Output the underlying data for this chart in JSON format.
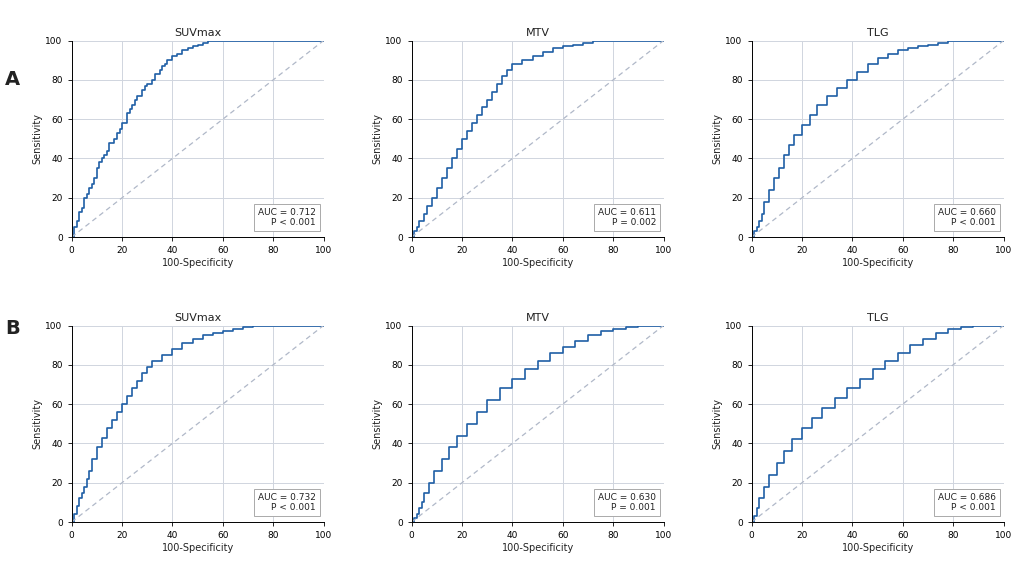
{
  "figure_bg": "#ffffff",
  "axes_bg": "#ffffff",
  "line_color": "#1f5fa6",
  "diag_color": "#b0b8c8",
  "grid_color": "#d0d5de",
  "text_color": "#222222",
  "titles": [
    "SUVmax",
    "MTV",
    "TLG",
    "SUVmax",
    "MTV",
    "TLG"
  ],
  "row_labels": [
    "A",
    "B"
  ],
  "auc_labels": [
    "AUC = 0.712\nP < 0.001",
    "AUC = 0.611\nP = 0.002",
    "AUC = 0.660\nP < 0.001",
    "AUC = 0.732\nP < 0.001",
    "AUC = 0.630\nP = 0.001",
    "AUC = 0.686\nP < 0.001"
  ],
  "xlabel": "100-Specificity",
  "ylabel": "Sensitivity",
  "xlim": [
    0,
    100
  ],
  "ylim": [
    0,
    100
  ],
  "xticks": [
    0,
    20,
    40,
    60,
    80,
    100
  ],
  "yticks": [
    0,
    20,
    40,
    60,
    80,
    100
  ],
  "roc_curves": [
    {
      "x": [
        0,
        1,
        1,
        2,
        2,
        3,
        3,
        4,
        4,
        5,
        5,
        6,
        6,
        7,
        7,
        8,
        8,
        9,
        9,
        10,
        10,
        11,
        11,
        12,
        12,
        13,
        13,
        14,
        14,
        15,
        15,
        17,
        17,
        18,
        18,
        19,
        19,
        20,
        20,
        22,
        22,
        23,
        23,
        24,
        24,
        25,
        25,
        26,
        26,
        28,
        28,
        29,
        29,
        30,
        30,
        32,
        32,
        33,
        33,
        35,
        35,
        36,
        36,
        37,
        37,
        38,
        38,
        40,
        40,
        42,
        42,
        44,
        44,
        46,
        46,
        48,
        48,
        50,
        50,
        52,
        52,
        54,
        54,
        56,
        56,
        58,
        58,
        60,
        60,
        62,
        62,
        64,
        64,
        68,
        68,
        70,
        70,
        72,
        72,
        76,
        76,
        78,
        78,
        100
      ],
      "y": [
        0,
        0,
        5,
        5,
        8,
        8,
        13,
        13,
        15,
        15,
        20,
        20,
        22,
        22,
        25,
        25,
        27,
        27,
        30,
        30,
        35,
        35,
        38,
        38,
        40,
        40,
        42,
        42,
        44,
        44,
        48,
        48,
        50,
        50,
        53,
        53,
        55,
        55,
        58,
        58,
        63,
        63,
        65,
        65,
        67,
        67,
        70,
        70,
        72,
        72,
        75,
        75,
        77,
        77,
        78,
        78,
        80,
        80,
        83,
        83,
        85,
        85,
        87,
        87,
        88,
        88,
        90,
        90,
        92,
        92,
        93,
        93,
        95,
        95,
        96,
        96,
        97,
        97,
        98,
        98,
        99,
        99,
        100,
        100,
        100,
        100,
        100,
        100,
        100,
        100,
        100,
        100,
        100,
        100,
        100,
        100,
        100,
        100,
        100,
        100,
        100,
        100,
        100,
        100
      ]
    },
    {
      "x": [
        0,
        1,
        1,
        2,
        2,
        3,
        3,
        5,
        5,
        6,
        6,
        8,
        8,
        10,
        10,
        12,
        12,
        14,
        14,
        16,
        16,
        18,
        18,
        20,
        20,
        22,
        22,
        24,
        24,
        26,
        26,
        28,
        28,
        30,
        30,
        32,
        32,
        34,
        34,
        36,
        36,
        38,
        38,
        40,
        40,
        44,
        44,
        48,
        48,
        52,
        52,
        56,
        56,
        60,
        60,
        64,
        64,
        68,
        68,
        72,
        72,
        76,
        76,
        80,
        80,
        84,
        84,
        88,
        88,
        92,
        92,
        96,
        96,
        100
      ],
      "y": [
        0,
        0,
        3,
        3,
        5,
        5,
        8,
        8,
        12,
        12,
        16,
        16,
        20,
        20,
        25,
        25,
        30,
        30,
        35,
        35,
        40,
        40,
        45,
        45,
        50,
        50,
        54,
        54,
        58,
        58,
        62,
        62,
        66,
        66,
        70,
        70,
        74,
        74,
        78,
        78,
        82,
        82,
        85,
        85,
        88,
        88,
        90,
        90,
        92,
        92,
        94,
        94,
        96,
        96,
        97,
        97,
        98,
        98,
        99,
        99,
        100,
        100,
        100,
        100,
        100,
        100,
        100,
        100,
        100,
        100,
        100,
        100,
        100,
        100
      ]
    },
    {
      "x": [
        0,
        1,
        1,
        2,
        2,
        3,
        3,
        4,
        4,
        5,
        5,
        7,
        7,
        9,
        9,
        11,
        11,
        13,
        13,
        15,
        15,
        17,
        17,
        20,
        20,
        23,
        23,
        26,
        26,
        30,
        30,
        34,
        34,
        38,
        38,
        42,
        42,
        46,
        46,
        50,
        50,
        54,
        54,
        58,
        58,
        62,
        62,
        66,
        66,
        70,
        70,
        74,
        74,
        78,
        78,
        82,
        82,
        86,
        86,
        90,
        90,
        94,
        94,
        100
      ],
      "y": [
        0,
        0,
        3,
        3,
        5,
        5,
        8,
        8,
        12,
        12,
        18,
        18,
        24,
        24,
        30,
        30,
        35,
        35,
        42,
        42,
        47,
        47,
        52,
        52,
        57,
        57,
        62,
        62,
        67,
        67,
        72,
        72,
        76,
        76,
        80,
        80,
        84,
        84,
        88,
        88,
        91,
        91,
        93,
        93,
        95,
        95,
        96,
        96,
        97,
        97,
        98,
        98,
        99,
        99,
        100,
        100,
        100,
        100,
        100,
        100,
        100,
        100,
        100,
        100
      ]
    },
    {
      "x": [
        0,
        1,
        1,
        2,
        2,
        3,
        3,
        4,
        4,
        5,
        5,
        6,
        6,
        7,
        7,
        8,
        8,
        10,
        10,
        12,
        12,
        14,
        14,
        16,
        16,
        18,
        18,
        20,
        20,
        22,
        22,
        24,
        24,
        26,
        26,
        28,
        28,
        30,
        30,
        32,
        32,
        36,
        36,
        40,
        40,
        44,
        44,
        48,
        48,
        52,
        52,
        56,
        56,
        60,
        60,
        64,
        64,
        68,
        68,
        72,
        72,
        76,
        76,
        80,
        80,
        100
      ],
      "y": [
        0,
        0,
        4,
        4,
        8,
        8,
        12,
        12,
        15,
        15,
        18,
        18,
        22,
        22,
        26,
        26,
        32,
        32,
        38,
        38,
        43,
        43,
        48,
        48,
        52,
        52,
        56,
        56,
        60,
        60,
        64,
        64,
        68,
        68,
        72,
        72,
        76,
        76,
        79,
        79,
        82,
        82,
        85,
        85,
        88,
        88,
        91,
        91,
        93,
        93,
        95,
        95,
        96,
        96,
        97,
        97,
        98,
        98,
        99,
        99,
        100,
        100,
        100,
        100,
        100,
        100
      ]
    },
    {
      "x": [
        0,
        1,
        1,
        2,
        2,
        3,
        3,
        4,
        4,
        5,
        5,
        7,
        7,
        9,
        9,
        12,
        12,
        15,
        15,
        18,
        18,
        22,
        22,
        26,
        26,
        30,
        30,
        35,
        35,
        40,
        40,
        45,
        45,
        50,
        50,
        55,
        55,
        60,
        60,
        65,
        65,
        70,
        70,
        75,
        75,
        80,
        80,
        85,
        85,
        90,
        90,
        95,
        95,
        100
      ],
      "y": [
        0,
        0,
        2,
        2,
        4,
        4,
        7,
        7,
        10,
        10,
        15,
        15,
        20,
        20,
        26,
        26,
        32,
        32,
        38,
        38,
        44,
        44,
        50,
        50,
        56,
        56,
        62,
        62,
        68,
        68,
        73,
        73,
        78,
        78,
        82,
        82,
        86,
        86,
        89,
        89,
        92,
        92,
        95,
        95,
        97,
        97,
        98,
        98,
        99,
        99,
        100,
        100,
        100,
        100
      ]
    },
    {
      "x": [
        0,
        1,
        1,
        2,
        2,
        3,
        3,
        5,
        5,
        7,
        7,
        10,
        10,
        13,
        13,
        16,
        16,
        20,
        20,
        24,
        24,
        28,
        28,
        33,
        33,
        38,
        38,
        43,
        43,
        48,
        48,
        53,
        53,
        58,
        58,
        63,
        63,
        68,
        68,
        73,
        73,
        78,
        78,
        83,
        83,
        88,
        88,
        93,
        93,
        98,
        98,
        100
      ],
      "y": [
        0,
        0,
        3,
        3,
        7,
        7,
        12,
        12,
        18,
        18,
        24,
        24,
        30,
        30,
        36,
        36,
        42,
        42,
        48,
        48,
        53,
        53,
        58,
        58,
        63,
        63,
        68,
        68,
        73,
        73,
        78,
        78,
        82,
        82,
        86,
        86,
        90,
        90,
        93,
        93,
        96,
        96,
        98,
        98,
        99,
        99,
        100,
        100,
        100,
        100,
        100,
        100
      ]
    }
  ]
}
